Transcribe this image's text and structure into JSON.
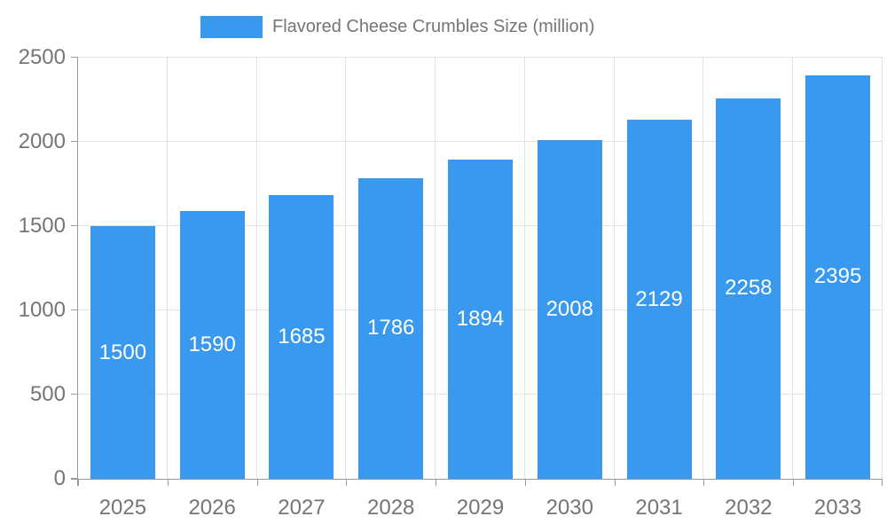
{
  "legend": {
    "label": "Flavored Cheese Crumbles Size (million)"
  },
  "colors": {
    "bar": "#3999EE",
    "axis": "#999999",
    "grid": "#E4E4E4",
    "tick_text": "#757575",
    "bar_label_text": "#FFFFFF",
    "background": "#FFFFFF"
  },
  "chart_data": {
    "type": "bar",
    "title": "Flavored Cheese Crumbles Size (million)",
    "categories": [
      "2025",
      "2026",
      "2027",
      "2028",
      "2029",
      "2030",
      "2031",
      "2032",
      "2033"
    ],
    "values": [
      1500,
      1590,
      1685,
      1786,
      1894,
      2008,
      2129,
      2258,
      2395
    ],
    "xlabel": "",
    "ylabel": "",
    "ylim": [
      0,
      2500
    ],
    "yticks": [
      0,
      500,
      1000,
      1500,
      2000,
      2500
    ],
    "grid": true,
    "legend_position": "top",
    "bar_labels": "inside-center"
  }
}
